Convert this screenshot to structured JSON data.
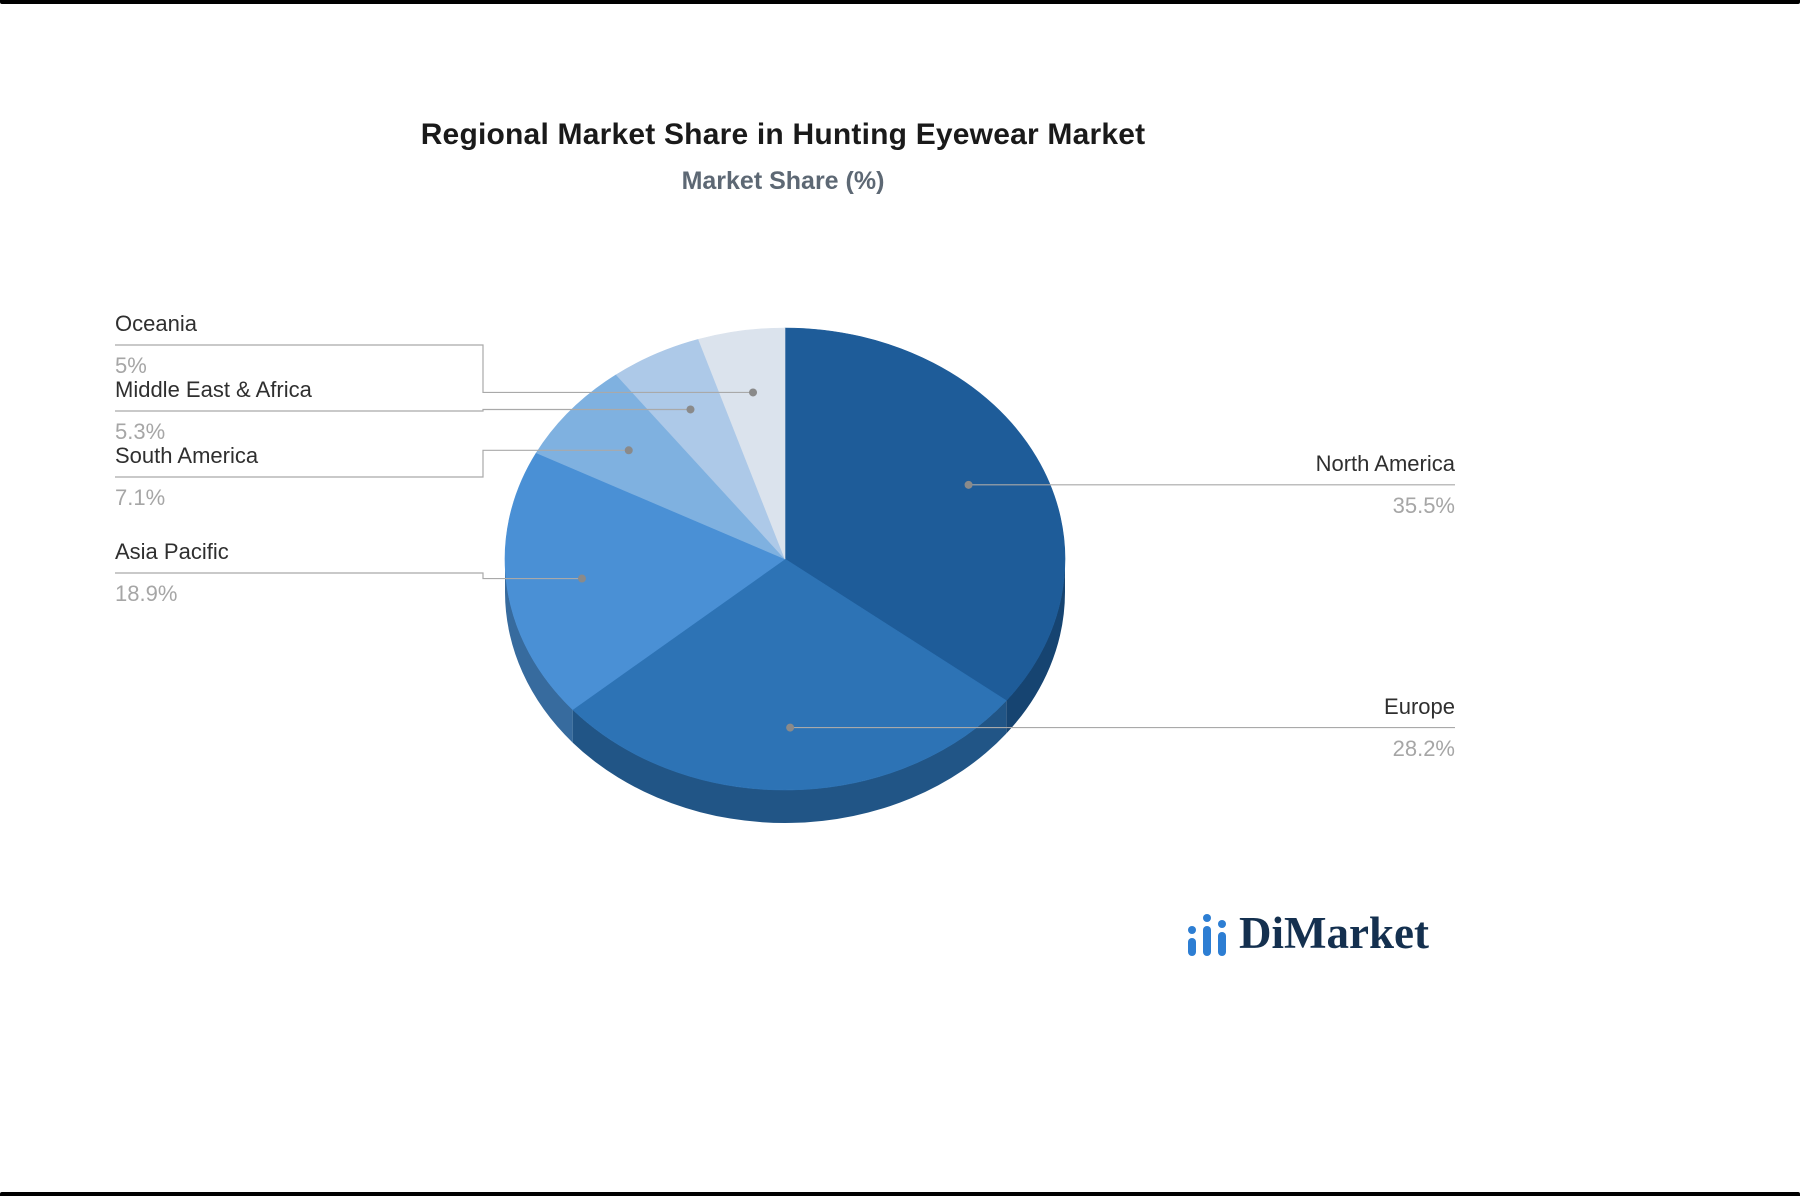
{
  "chart_data": {
    "type": "pie",
    "title": "Regional Market Share in Hunting Eyewear Market",
    "subtitle": "Market Share (%)",
    "unit": "%",
    "legend_position": "none",
    "style": "3d-pie with leader lines, name above line and percent value below line",
    "slices": [
      {
        "label": "North America",
        "value": 35.5,
        "display": "35.5%",
        "color": "#1e5c99"
      },
      {
        "label": "Europe",
        "value": 28.2,
        "display": "28.2%",
        "color": "#2d73b5"
      },
      {
        "label": "Asia Pacific",
        "value": 18.9,
        "display": "18.9%",
        "color": "#4a90d5"
      },
      {
        "label": "South America",
        "value": 7.1,
        "display": "7.1%",
        "color": "#7fb1e0"
      },
      {
        "label": "Middle East & Africa",
        "value": 5.3,
        "display": "5.3%",
        "color": "#adc9e8"
      },
      {
        "label": "Oceania",
        "value": 5.0,
        "display": "5%",
        "color": "#dbe3ed"
      }
    ]
  },
  "logo": {
    "text": "DiMarket"
  },
  "colors": {
    "background": "#ffffff",
    "frame": "#000000",
    "title": "#1a1a1a",
    "subtitle": "#5d6874",
    "label": "#2f2f2f",
    "value": "#a6a6a6",
    "leader": "#a9a9a9",
    "dot": "#8a8a8a",
    "logo_text": "#14304f",
    "logo_icon": "#2d7ed3"
  }
}
